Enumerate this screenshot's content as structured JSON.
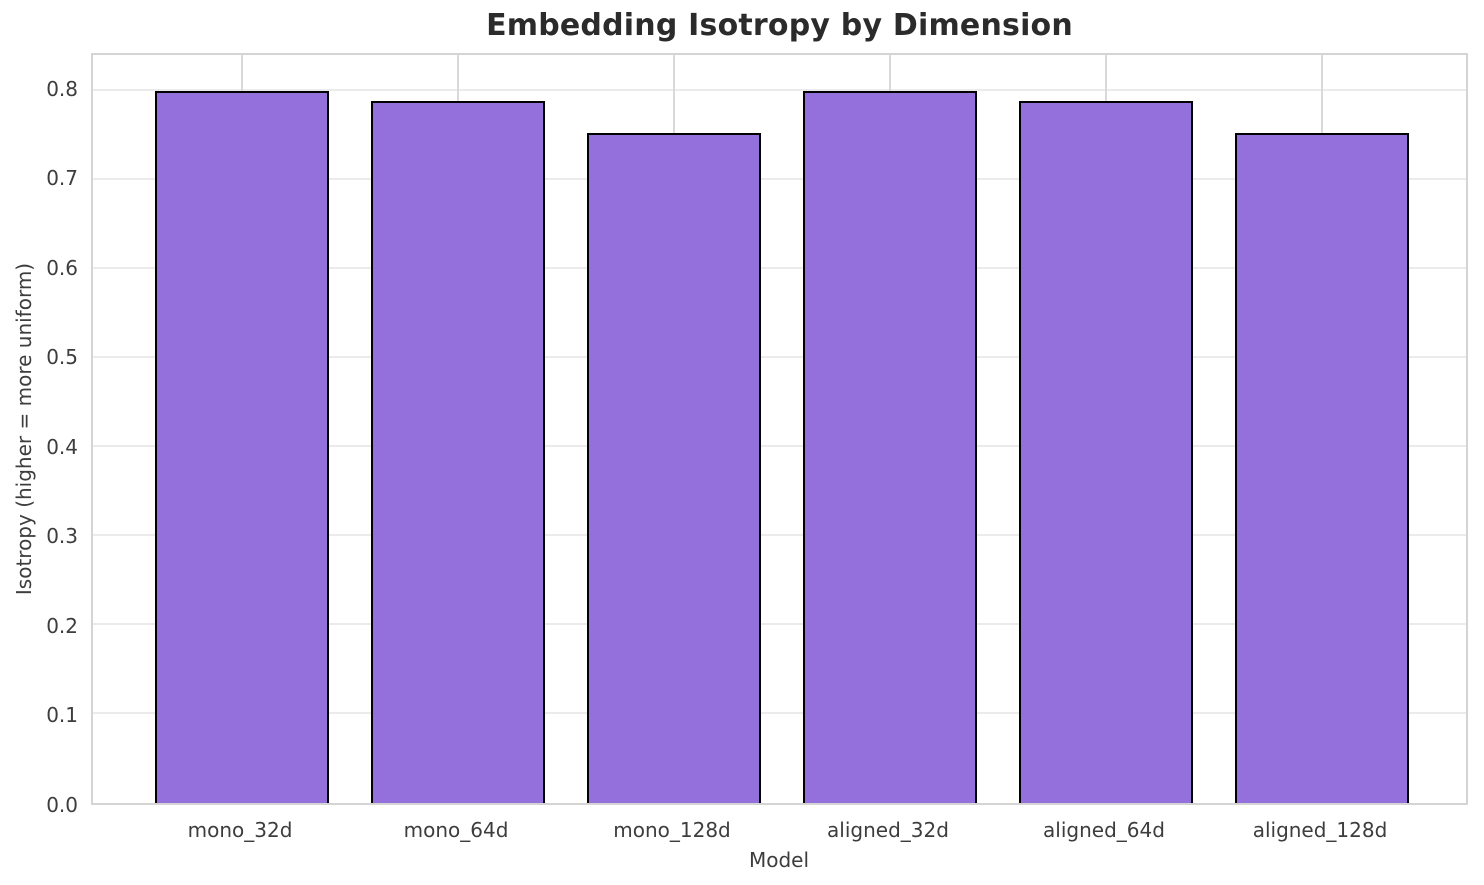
{
  "chart_data": {
    "type": "bar",
    "title": "Embedding Isotropy by Dimension",
    "xlabel": "Model",
    "ylabel": "Isotropy (higher = more uniform)",
    "categories": [
      "mono_32d",
      "mono_64d",
      "mono_128d",
      "aligned_32d",
      "aligned_64d",
      "aligned_128d"
    ],
    "values": [
      0.8,
      0.788,
      0.752,
      0.8,
      0.788,
      0.752
    ],
    "ylim": [
      0,
      0.84
    ],
    "yticks": [
      0.0,
      0.1,
      0.2,
      0.3,
      0.4,
      0.5,
      0.6,
      0.7,
      0.8
    ],
    "ytick_labels": [
      "0.0",
      "0.1",
      "0.2",
      "0.3",
      "0.4",
      "0.5",
      "0.6",
      "0.7",
      "0.8"
    ],
    "grid": true,
    "legend": null,
    "colors": {
      "bar_fill": "#9370DB",
      "bar_edge": "#000000",
      "grid_h": "#ebebeb",
      "grid_v": "#d9d9d9",
      "spine": "#d4d4d4",
      "title_text": "#2b2b2b",
      "tick_text": "#3d3d3d"
    }
  }
}
